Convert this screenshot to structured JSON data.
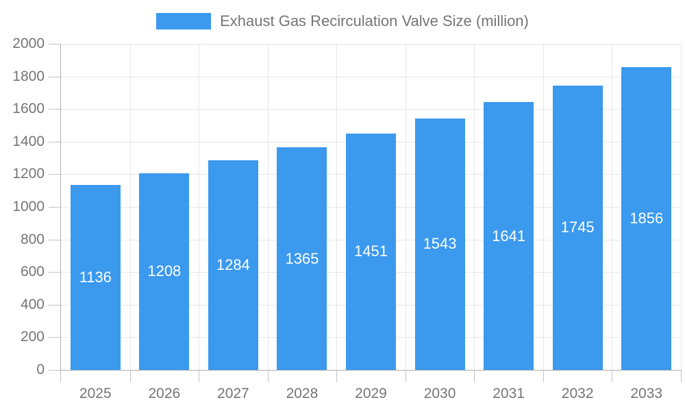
{
  "legend": {
    "label": "Exhaust Gas Recirculation Valve Size (million)"
  },
  "chart_data": {
    "type": "bar",
    "title": "Exhaust Gas Recirculation Valve Size (million)",
    "categories": [
      "2025",
      "2026",
      "2027",
      "2028",
      "2029",
      "2030",
      "2031",
      "2032",
      "2033"
    ],
    "values": [
      1136,
      1208,
      1284,
      1365,
      1451,
      1543,
      1641,
      1745,
      1856
    ],
    "xlabel": "",
    "ylabel": "",
    "ylim": [
      0,
      2000
    ],
    "ytick_step": 200,
    "ytick_labels": [
      "0",
      "200",
      "400",
      "600",
      "800",
      "1000",
      "1200",
      "1400",
      "1600",
      "1800",
      "2000"
    ],
    "grid": true,
    "legend_position": "top-center",
    "bar_labels_inside": true,
    "colors": {
      "bar": "#3b99ee",
      "bar_label": "#ffffff",
      "axis_text": "#757575",
      "grid": "#e6e6e6",
      "axis_line": "#adadad",
      "tick": "#c2c2c2",
      "background": "#ffffff"
    }
  }
}
